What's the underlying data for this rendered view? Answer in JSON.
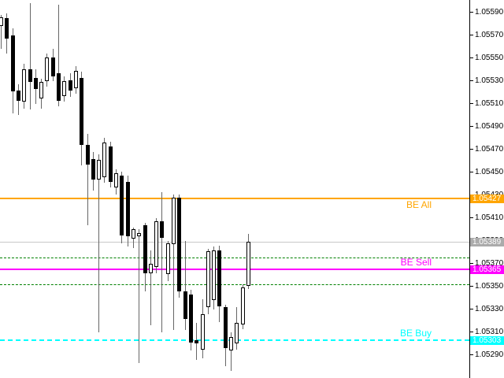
{
  "window": {
    "background": "#ffffff",
    "axis_color": "#000000"
  },
  "axis": {
    "price_labels": [
      "1.05590",
      "1.05570",
      "1.05550",
      "1.05530",
      "1.05510",
      "1.05490",
      "1.05470",
      "1.05450",
      "1.05430",
      "1.05410",
      "1.05390",
      "1.05370",
      "1.05350",
      "1.05330",
      "1.05310",
      "1.05290"
    ]
  },
  "lines": [
    {
      "id": "bid-line",
      "label": "",
      "label_pos": "",
      "price": 1.05389,
      "badge": "1.05389",
      "color": "#C8C8C8",
      "badge_bg": "#ABABAB",
      "style": "solid",
      "thickness": 1,
      "interactable": false
    },
    {
      "id": "be-upper-stop-line",
      "label": "",
      "label_pos": "",
      "price": 1.05375,
      "badge": "",
      "color": "#008000",
      "badge_bg": "",
      "style": "dashed",
      "thickness": 1,
      "interactable": true
    },
    {
      "id": "be-lower-stop-line",
      "label": "",
      "label_pos": "",
      "price": 1.05352,
      "badge": "",
      "color": "#008000",
      "badge_bg": "",
      "style": "dashed",
      "thickness": 1,
      "interactable": true
    },
    {
      "id": "be-all-line",
      "label": "BE All",
      "label_pos": "below",
      "price": 1.05427,
      "badge": "1.05427",
      "color": "#FFA500",
      "badge_bg": "#FFA500",
      "style": "solid",
      "thickness": 2,
      "interactable": true
    },
    {
      "id": "be-sell-line",
      "label": "BE Sell",
      "label_pos": "above",
      "price": 1.05365,
      "badge": "1.05365",
      "color": "#FF00FF",
      "badge_bg": "#FF00FF",
      "style": "solid",
      "thickness": 2,
      "interactable": true
    },
    {
      "id": "be-buy-line",
      "label": "BE Buy",
      "label_pos": "above",
      "price": 1.05303,
      "badge": "1.05303",
      "color": "#00FFFF",
      "badge_bg": "#00FFFF",
      "style": "dashed",
      "thickness": 2,
      "interactable": true
    }
  ],
  "chart_data": {
    "type": "candlestick",
    "title": "",
    "ylim": [
      1.0527,
      1.05601
    ],
    "x_start": 1.5,
    "x_step": 7.3,
    "candle_width": 5,
    "bull_color": "#FFFFFF",
    "bear_color": "#000000",
    "outline_color": "#000000",
    "wick_color": "#666666",
    "grid": false,
    "candles": [
      {
        "o": 1.05578,
        "h": 1.05588,
        "l": 1.05558,
        "c": 1.05586
      },
      {
        "o": 1.05585,
        "h": 1.05589,
        "l": 1.05554,
        "c": 1.05567
      },
      {
        "o": 1.0557,
        "h": 1.05576,
        "l": 1.05502,
        "c": 1.05521
      },
      {
        "o": 1.05522,
        "h": 1.05527,
        "l": 1.055,
        "c": 1.05513
      },
      {
        "o": 1.05512,
        "h": 1.05545,
        "l": 1.05506,
        "c": 1.0554
      },
      {
        "o": 1.0554,
        "h": 1.05598,
        "l": 1.05505,
        "c": 1.05529
      },
      {
        "o": 1.05533,
        "h": 1.0554,
        "l": 1.0551,
        "c": 1.05523
      },
      {
        "o": 1.05515,
        "h": 1.05532,
        "l": 1.05506,
        "c": 1.05529
      },
      {
        "o": 1.0553,
        "h": 1.05554,
        "l": 1.05525,
        "c": 1.05551
      },
      {
        "o": 1.05551,
        "h": 1.05558,
        "l": 1.0553,
        "c": 1.05534
      },
      {
        "o": 1.05537,
        "h": 1.05597,
        "l": 1.05508,
        "c": 1.05513
      },
      {
        "o": 1.05517,
        "h": 1.05534,
        "l": 1.05512,
        "c": 1.0553
      },
      {
        "o": 1.05531,
        "h": 1.05537,
        "l": 1.05516,
        "c": 1.05522
      },
      {
        "o": 1.05524,
        "h": 1.05543,
        "l": 1.05519,
        "c": 1.05539
      },
      {
        "o": 1.05533,
        "h": 1.05538,
        "l": 1.05456,
        "c": 1.05474
      },
      {
        "o": 1.05474,
        "h": 1.05484,
        "l": 1.05404,
        "c": 1.05457
      },
      {
        "o": 1.05462,
        "h": 1.05468,
        "l": 1.05434,
        "c": 1.05444
      },
      {
        "o": 1.05444,
        "h": 1.05466,
        "l": 1.0531,
        "c": 1.05461
      },
      {
        "o": 1.05446,
        "h": 1.0548,
        "l": 1.05441,
        "c": 1.05476
      },
      {
        "o": 1.05473,
        "h": 1.05477,
        "l": 1.05437,
        "c": 1.05442
      },
      {
        "o": 1.05437,
        "h": 1.05453,
        "l": 1.05431,
        "c": 1.05449
      },
      {
        "o": 1.05447,
        "h": 1.05451,
        "l": 1.05388,
        "c": 1.05395
      },
      {
        "o": 1.05442,
        "h": 1.05447,
        "l": 1.05385,
        "c": 1.05394
      },
      {
        "o": 1.05392,
        "h": 1.05402,
        "l": 1.05384,
        "c": 1.054
      },
      {
        "o": 1.05394,
        "h": 1.054,
        "l": 1.05283,
        "c": 1.05397
      },
      {
        "o": 1.05404,
        "h": 1.05406,
        "l": 1.05346,
        "c": 1.05362
      },
      {
        "o": 1.05362,
        "h": 1.05382,
        "l": 1.05316,
        "c": 1.0537
      },
      {
        "o": 1.05367,
        "h": 1.0541,
        "l": 1.05362,
        "c": 1.05407
      },
      {
        "o": 1.05407,
        "h": 1.05433,
        "l": 1.0531,
        "c": 1.05393
      },
      {
        "o": 1.05361,
        "h": 1.0539,
        "l": 1.05355,
        "c": 1.05388
      },
      {
        "o": 1.05387,
        "h": 1.05431,
        "l": 1.05312,
        "c": 1.05428
      },
      {
        "o": 1.05428,
        "h": 1.05431,
        "l": 1.0534,
        "c": 1.05346
      },
      {
        "o": 1.05346,
        "h": 1.0539,
        "l": 1.05312,
        "c": 1.05322
      },
      {
        "o": 1.05343,
        "h": 1.05347,
        "l": 1.05294,
        "c": 1.05301
      },
      {
        "o": 1.05303,
        "h": 1.05318,
        "l": 1.05286,
        "c": 1.053
      },
      {
        "o": 1.05295,
        "h": 1.05339,
        "l": 1.05287,
        "c": 1.05326
      },
      {
        "o": 1.05332,
        "h": 1.05383,
        "l": 1.05326,
        "c": 1.05381
      },
      {
        "o": 1.05338,
        "h": 1.05385,
        "l": 1.0533,
        "c": 1.05382
      },
      {
        "o": 1.05382,
        "h": 1.05386,
        "l": 1.05319,
        "c": 1.05333
      },
      {
        "o": 1.05332,
        "h": 1.05334,
        "l": 1.0528,
        "c": 1.05296
      },
      {
        "o": 1.05294,
        "h": 1.0531,
        "l": 1.05276,
        "c": 1.05306
      },
      {
        "o": 1.053,
        "h": 1.05332,
        "l": 1.05295,
        "c": 1.05318
      },
      {
        "o": 1.05317,
        "h": 1.05352,
        "l": 1.05313,
        "c": 1.05349
      },
      {
        "o": 1.05351,
        "h": 1.05396,
        "l": 1.05348,
        "c": 1.05389
      }
    ]
  }
}
